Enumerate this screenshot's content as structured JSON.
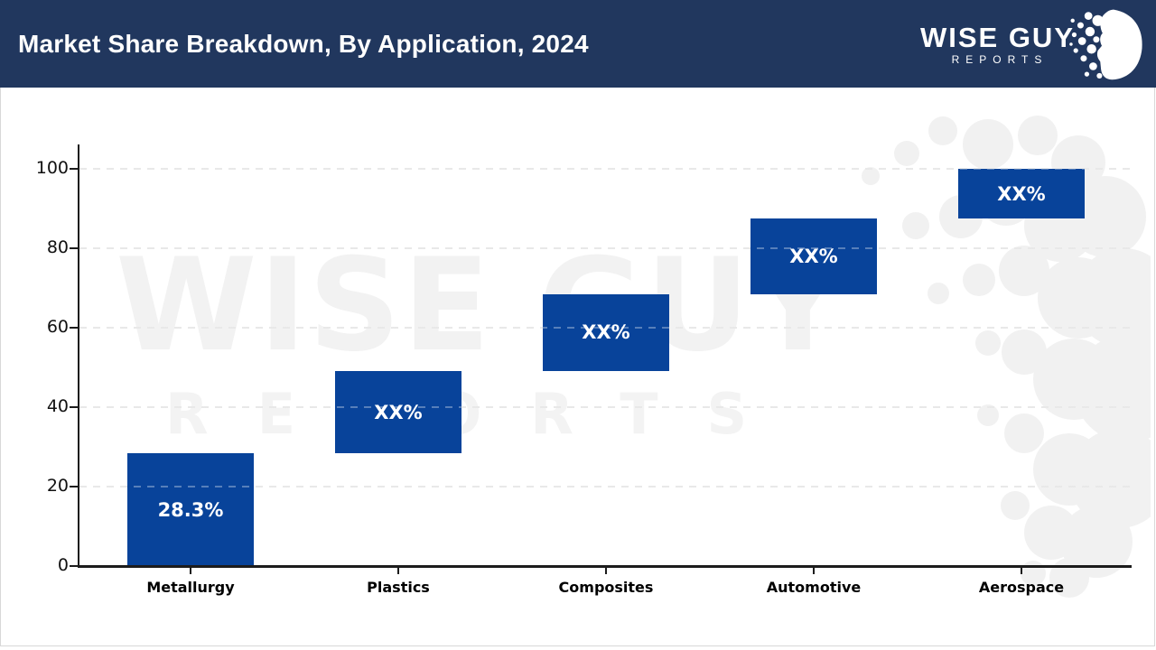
{
  "header": {
    "title": "Market Share Breakdown, By Application, 2024",
    "bg_color": "#21375e",
    "logo": {
      "line1": "WISE GUY",
      "line2": "REPORTS"
    }
  },
  "watermark": {
    "line1": "WISE GUY",
    "line2": "REPORTS"
  },
  "chart_data": {
    "type": "bar",
    "subtype": "floating-waterfall",
    "title": "Market Share Breakdown, By Application, 2024",
    "categories": [
      "Metallurgy",
      "Plastics",
      "Composites",
      "Automotive",
      "Aerospace"
    ],
    "bars": [
      {
        "category": "Metallurgy",
        "start": 0,
        "end": 28.3,
        "label": "28.3%"
      },
      {
        "category": "Plastics",
        "start": 28.3,
        "end": 49,
        "label": "XX%"
      },
      {
        "category": "Composites",
        "start": 49,
        "end": 68.5,
        "label": "XX%"
      },
      {
        "category": "Automotive",
        "start": 68.5,
        "end": 87.5,
        "label": "XX%"
      },
      {
        "category": "Aerospace",
        "start": 87.5,
        "end": 100,
        "label": "XX%"
      }
    ],
    "yticks": [
      0,
      20,
      40,
      60,
      80,
      100
    ],
    "ylim": [
      0,
      100
    ],
    "xlabel": "",
    "ylabel": "",
    "grid": {
      "horizontal": true,
      "style": "dashed"
    },
    "legend": null,
    "bar_color": "#08439a",
    "axis_color": "#1c1c1c",
    "gridline_color": "#dedede"
  }
}
